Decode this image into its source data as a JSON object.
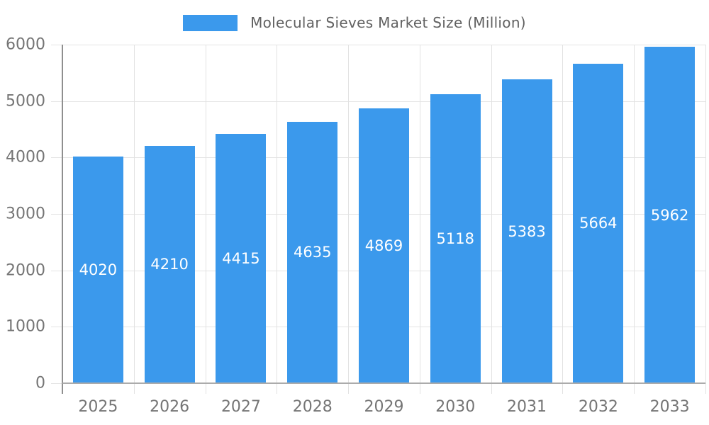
{
  "legend": {
    "label": "Molecular Sieves Market Size (Million)"
  },
  "chart_data": {
    "type": "bar",
    "title": "Molecular Sieves Market Size (Million)",
    "categories": [
      "2025",
      "2026",
      "2027",
      "2028",
      "2029",
      "2030",
      "2031",
      "2032",
      "2033"
    ],
    "values": [
      4020,
      4210,
      4415,
      4635,
      4869,
      5118,
      5383,
      5664,
      5962
    ],
    "xlabel": "",
    "ylabel": "",
    "ylim": [
      0,
      6000
    ],
    "yticks": [
      0,
      1000,
      2000,
      3000,
      4000,
      5000,
      6000
    ],
    "grid": true,
    "legend_position": "top-center",
    "bar_labels_inside": true,
    "colors": {
      "bar": "#3B99EC",
      "bar_label": "#ffffff",
      "axis_text": "#757575",
      "legend_text": "#616161",
      "grid": "#e2e2e2",
      "y_axis_line": "#8f8f8f",
      "x_axis_line": "#ababab",
      "background": "#ffffff"
    }
  }
}
